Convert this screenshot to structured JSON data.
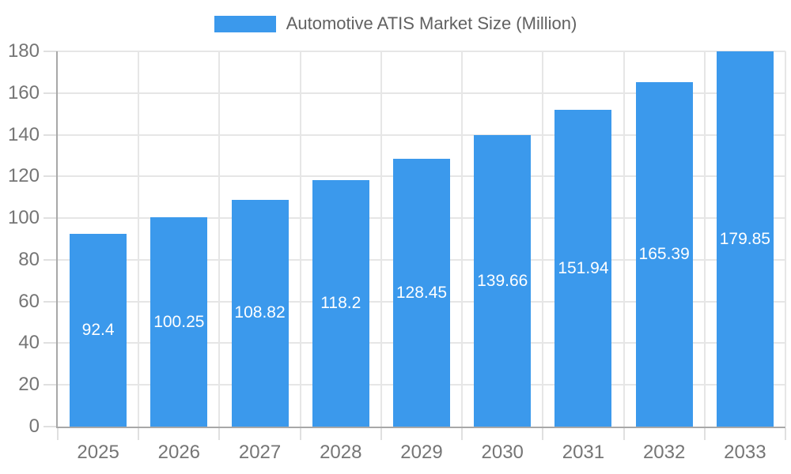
{
  "chart_data": {
    "type": "bar",
    "title": "Automotive ATIS Market Size (Million)",
    "categories": [
      "2025",
      "2026",
      "2027",
      "2028",
      "2029",
      "2030",
      "2031",
      "2032",
      "2033"
    ],
    "values": [
      92.4,
      100.25,
      108.82,
      118.2,
      128.45,
      139.66,
      151.94,
      165.39,
      179.85
    ],
    "value_labels": [
      "92.4",
      "100.25",
      "108.82",
      "118.2",
      "128.45",
      "139.66",
      "151.94",
      "165.39",
      "179.85"
    ],
    "xlabel": "",
    "ylabel": "",
    "ylim": [
      0,
      180
    ],
    "y_ticks": [
      0,
      20,
      40,
      60,
      80,
      100,
      120,
      140,
      160,
      180
    ],
    "grid": "both",
    "legend_position": "top-center",
    "colors": {
      "bar": "#3B99EC",
      "grid": "#e6e6e6",
      "tick": "#e0e0e0",
      "axis_line": "#a8a8a8",
      "axis_text": "#757575",
      "legend_text": "#616161",
      "value_text": "#ffffff",
      "background": "#ffffff"
    }
  }
}
